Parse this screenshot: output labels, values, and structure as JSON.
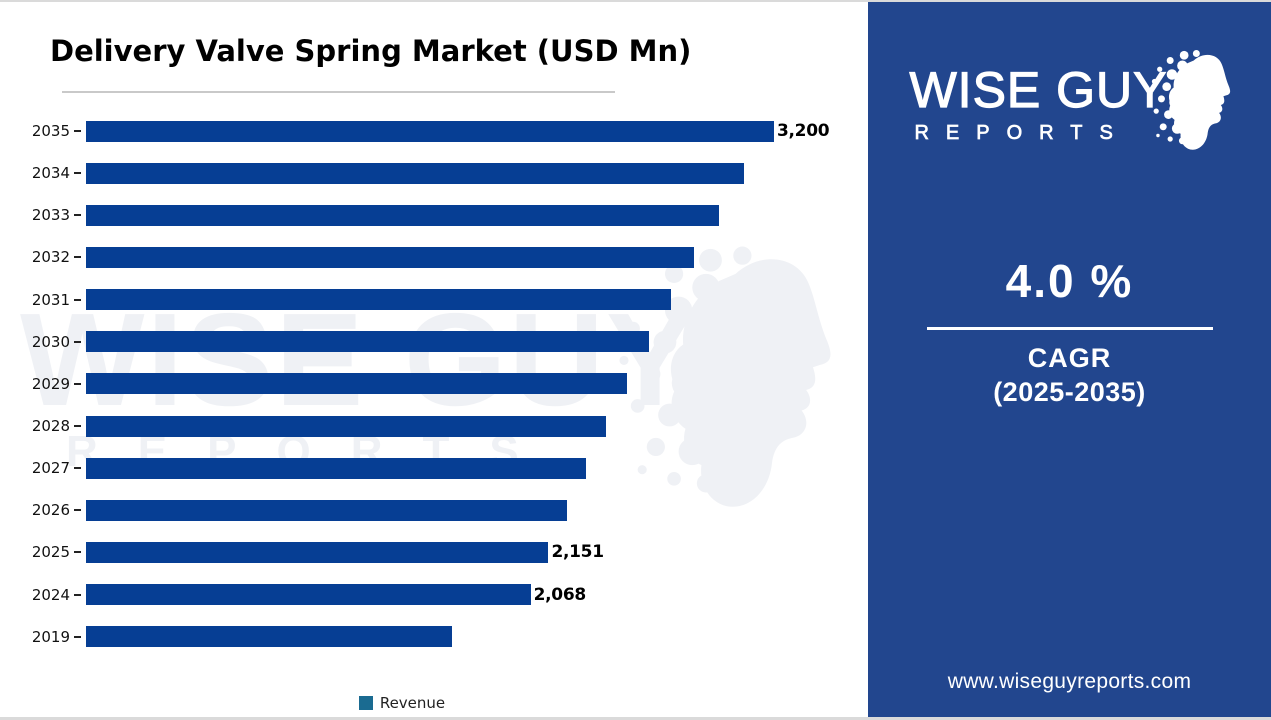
{
  "chart_data": {
    "type": "bar",
    "orientation": "horizontal",
    "title": "Delivery Valve Spring Market (USD Mn)",
    "categories": [
      "2035",
      "2034",
      "2033",
      "2032",
      "2031",
      "2030",
      "2029",
      "2028",
      "2027",
      "2026",
      "2025",
      "2024",
      "2019"
    ],
    "values": [
      3200,
      3062,
      2944,
      2830,
      2721,
      2617,
      2516,
      2419,
      2326,
      2237,
      2151,
      2068,
      1700
    ],
    "bar_labels": [
      "3,200",
      "",
      "",
      "",
      "",
      "",
      "",
      "",
      "",
      "",
      "2,151",
      "2,068",
      ""
    ],
    "xlim": [
      0,
      3200
    ],
    "grid": false,
    "legend": {
      "position": "bottom",
      "entries": [
        "Revenue"
      ]
    },
    "bar_color": "#063e94",
    "legend_swatch_color": "#1a6b91"
  },
  "watermark": {
    "line1": "WISE GUY",
    "line2": "REPORTS"
  },
  "sidebar": {
    "background_color": "#22468e",
    "logo_line1": "WISE GUY",
    "logo_line2": "REPORTS",
    "cagr_value": "4.0 %",
    "cagr_title": "CAGR",
    "cagr_period": "(2025-2035)",
    "website": "www.wiseguyreports.com"
  }
}
